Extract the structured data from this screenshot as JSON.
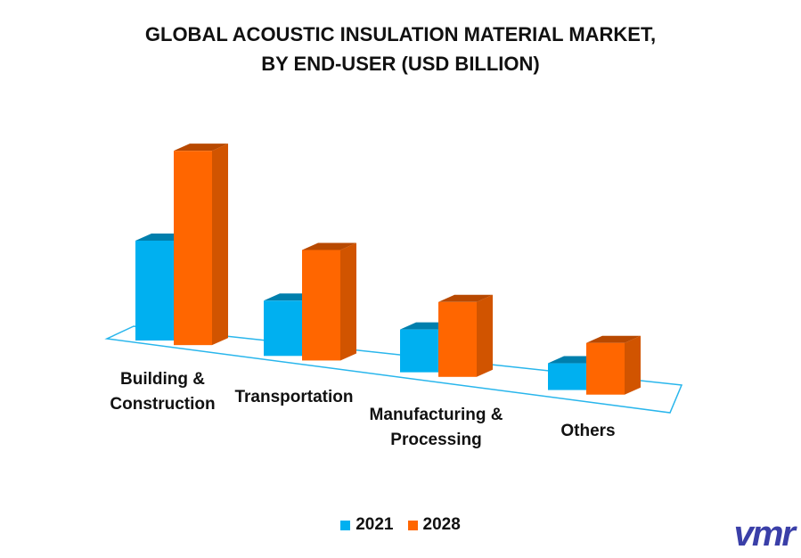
{
  "chart_data": {
    "type": "bar3d",
    "title": "GLOBAL ACOUSTIC INSULATION MATERIAL MARKET,\nBY END-USER (USD BILLION)",
    "categories": [
      "Building & Construction",
      "Transportation",
      "Manufacturing & Processing",
      "Others"
    ],
    "series": [
      {
        "name": "2021",
        "color": "#00b0f0",
        "values": [
          5.6,
          3.1,
          2.4,
          1.5
        ]
      },
      {
        "name": "2028",
        "color": "#ff6600",
        "values": [
          10.9,
          6.2,
          4.2,
          2.9
        ]
      }
    ],
    "legend": "bottom",
    "logo": "vmr"
  }
}
